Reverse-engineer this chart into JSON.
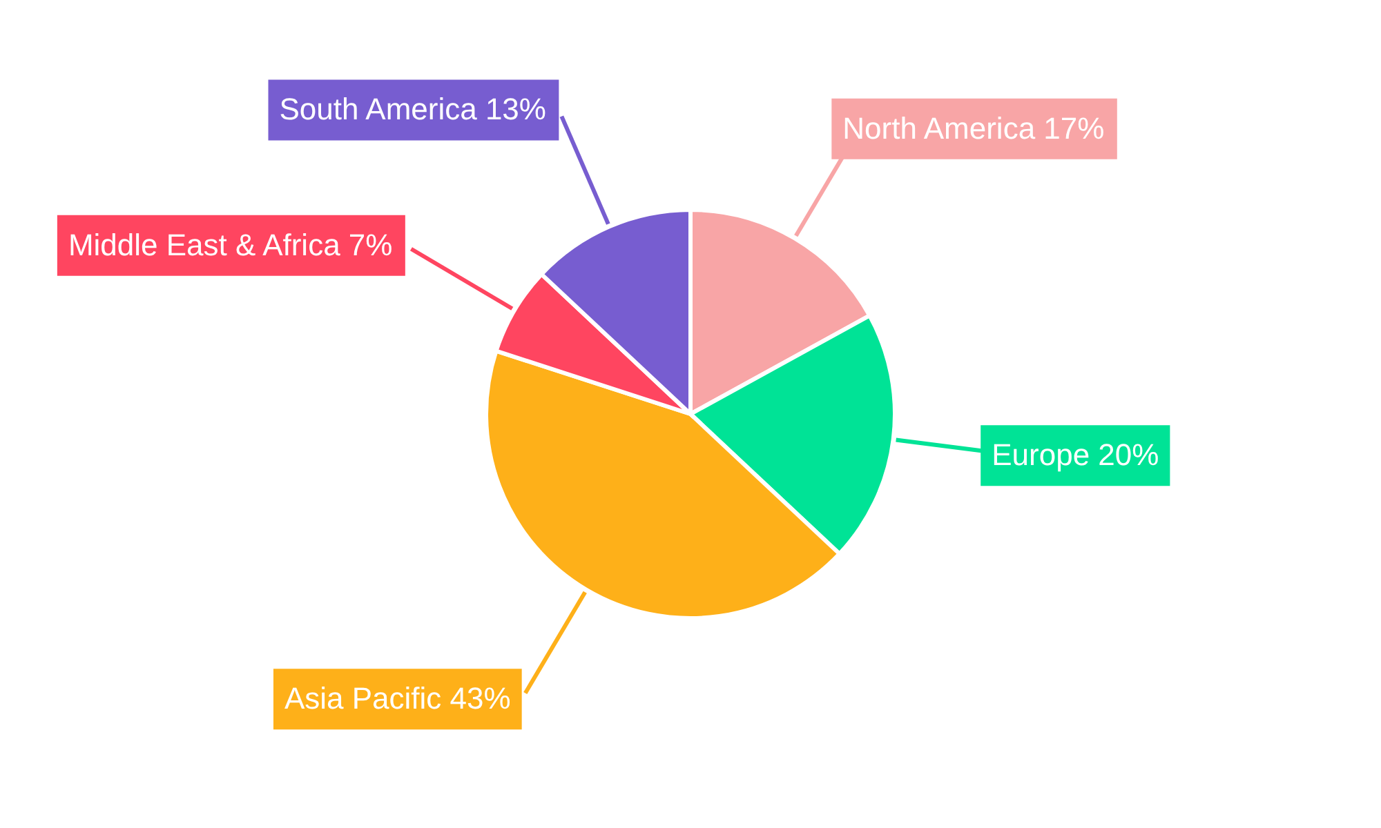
{
  "chart_data": {
    "type": "pie",
    "categories": [
      "North America",
      "Europe",
      "Asia Pacific",
      "Middle East & Africa",
      "South America"
    ],
    "values": [
      17,
      20,
      43,
      7,
      13
    ],
    "value_labels": [
      "17%",
      "20%",
      "43%",
      "7%",
      "13%"
    ],
    "colors": [
      "#f8a5a6",
      "#00e396",
      "#feb019",
      "#ff4560",
      "#775dd0"
    ]
  }
}
